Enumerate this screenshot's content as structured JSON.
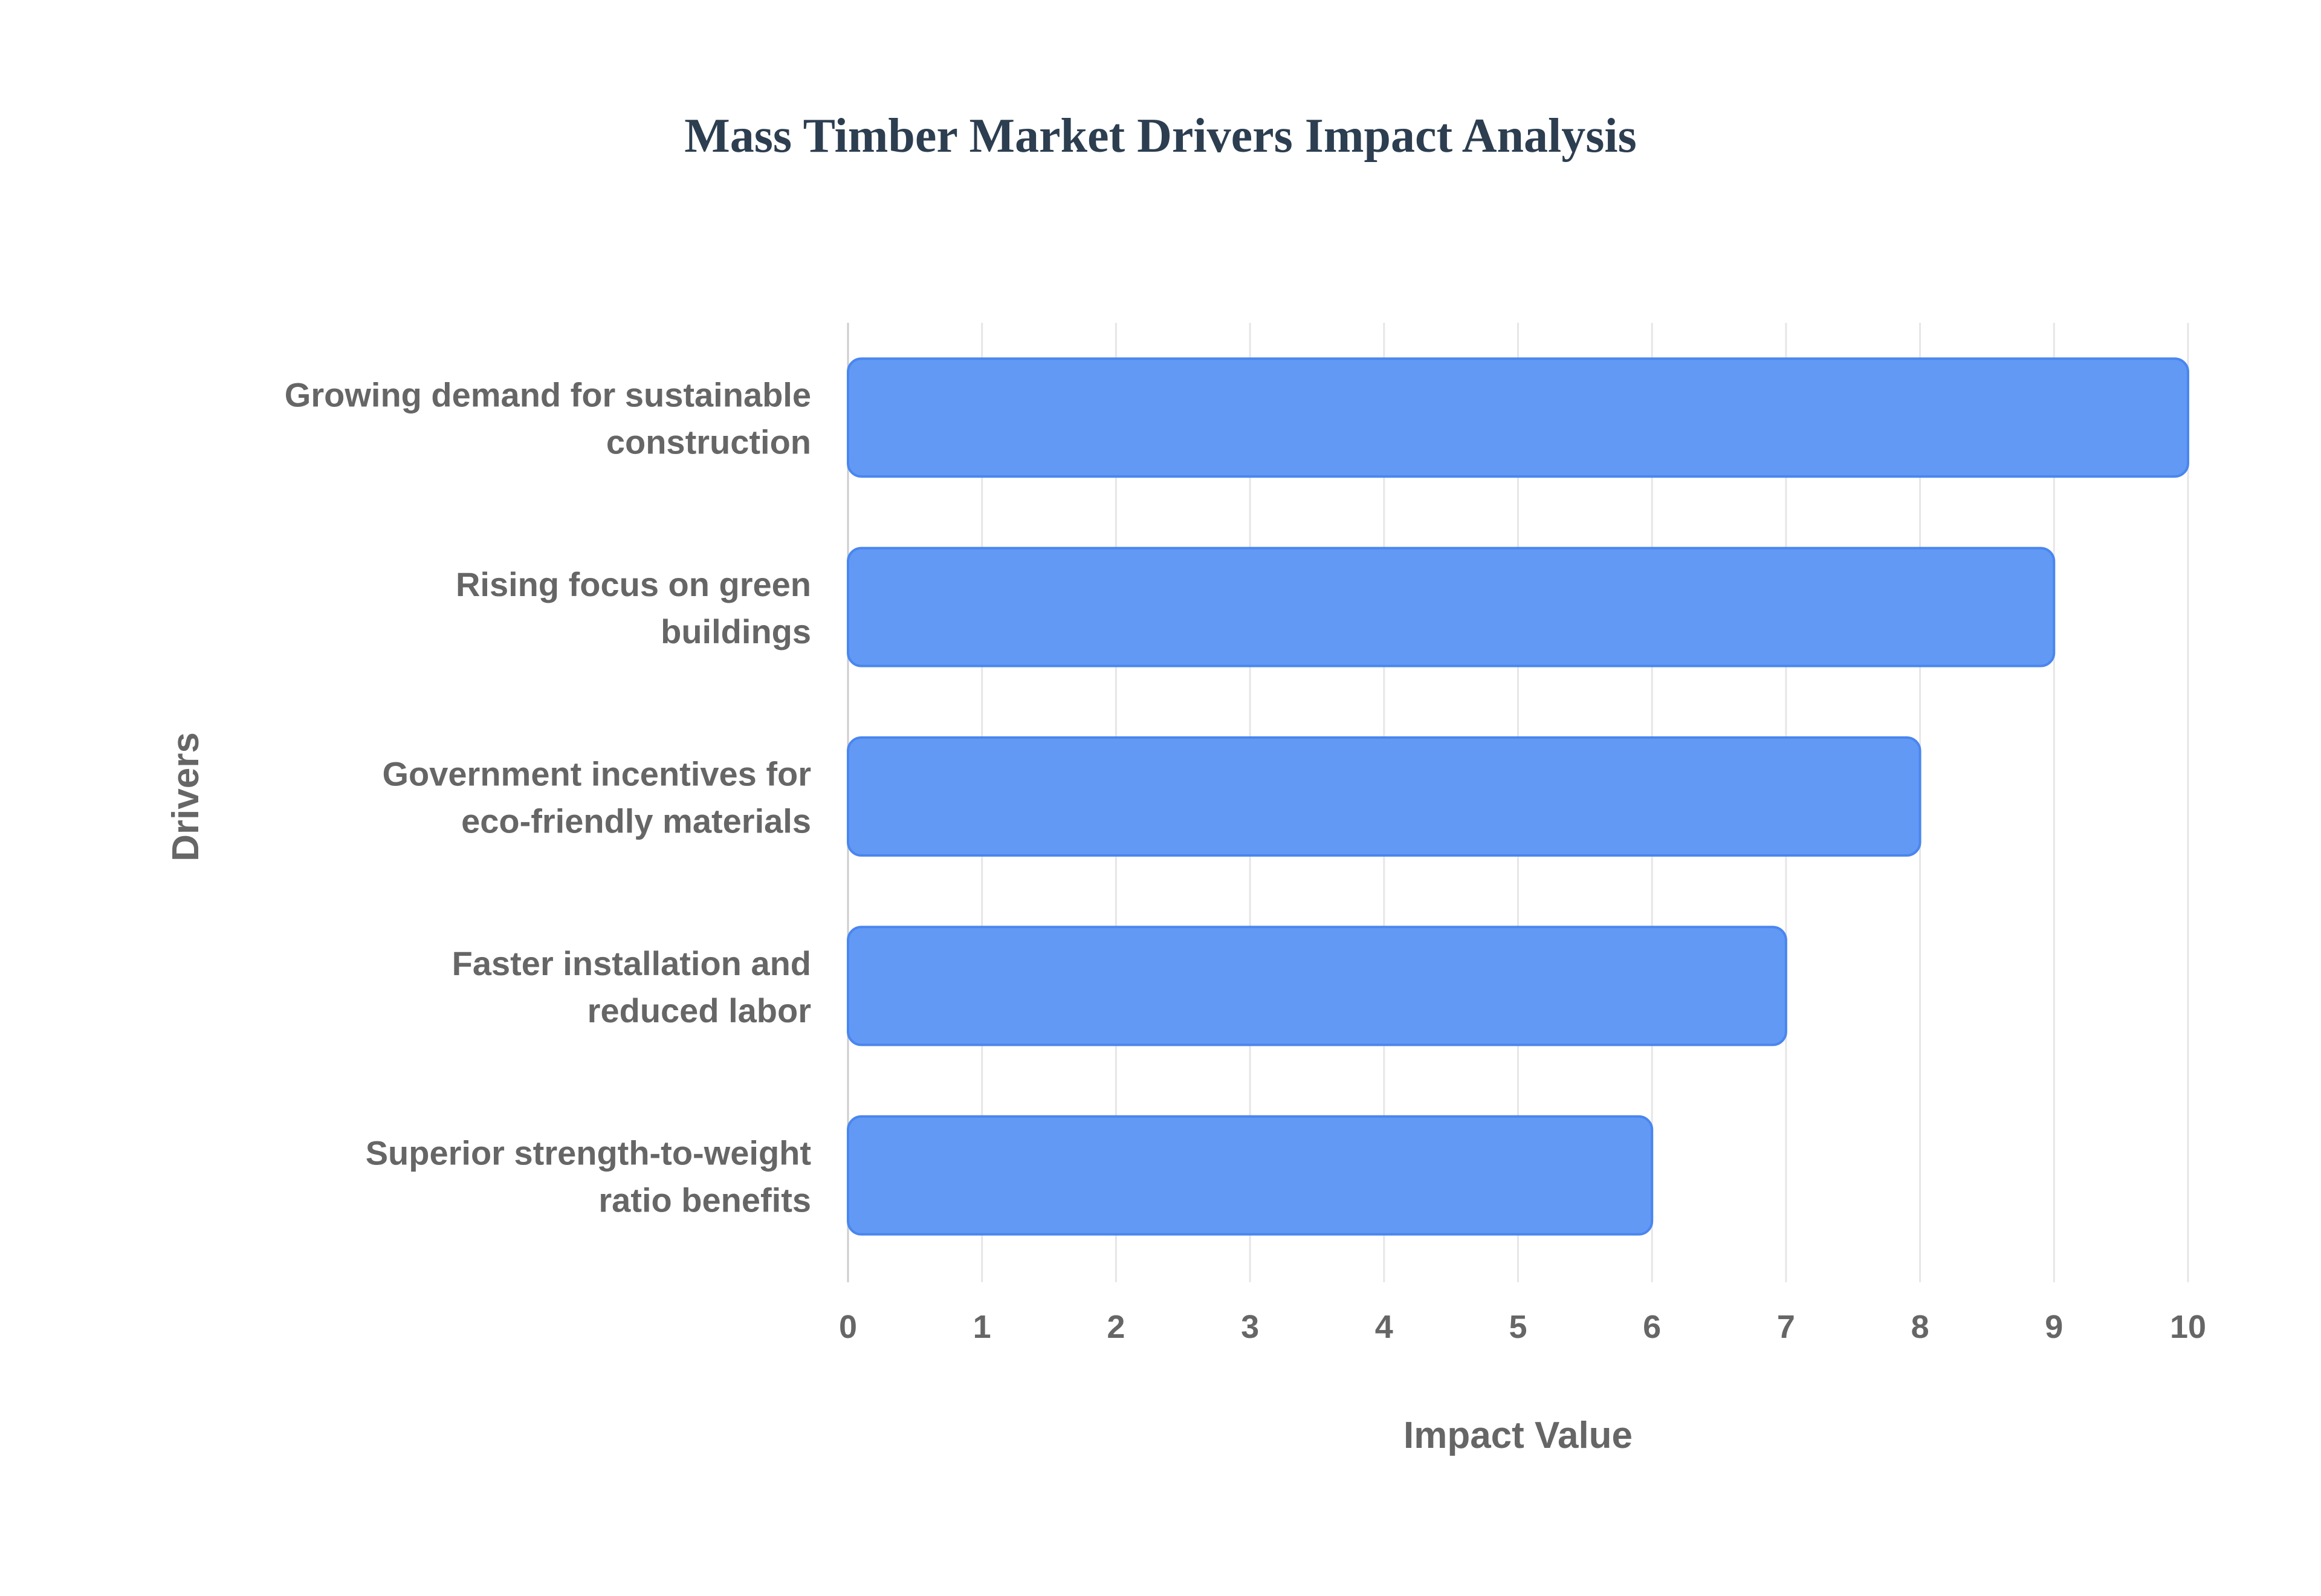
{
  "chart_data": {
    "type": "bar",
    "orientation": "horizontal",
    "title": "Mass Timber Market Drivers Impact Analysis",
    "xlabel": "Impact Value",
    "ylabel": "Drivers",
    "xlim": [
      0,
      10
    ],
    "xticks": [
      "0",
      "1",
      "2",
      "3",
      "4",
      "5",
      "6",
      "7",
      "8",
      "9",
      "10"
    ],
    "grid": true,
    "categories": [
      [
        "Growing demand for sustainable",
        "construction"
      ],
      [
        "Rising focus on green",
        "buildings"
      ],
      [
        "Government incentives for",
        "eco-friendly materials"
      ],
      [
        "Faster installation and",
        "reduced labor"
      ],
      [
        "Superior strength-to-weight",
        "ratio benefits"
      ]
    ],
    "values": [
      10,
      9,
      8,
      7,
      6
    ],
    "colors": {
      "bar_fill": "#6199f5",
      "bar_border": "#4a86ee",
      "grid": "#e6e6e6",
      "text": "#666666",
      "title": "#2c3e50"
    }
  }
}
